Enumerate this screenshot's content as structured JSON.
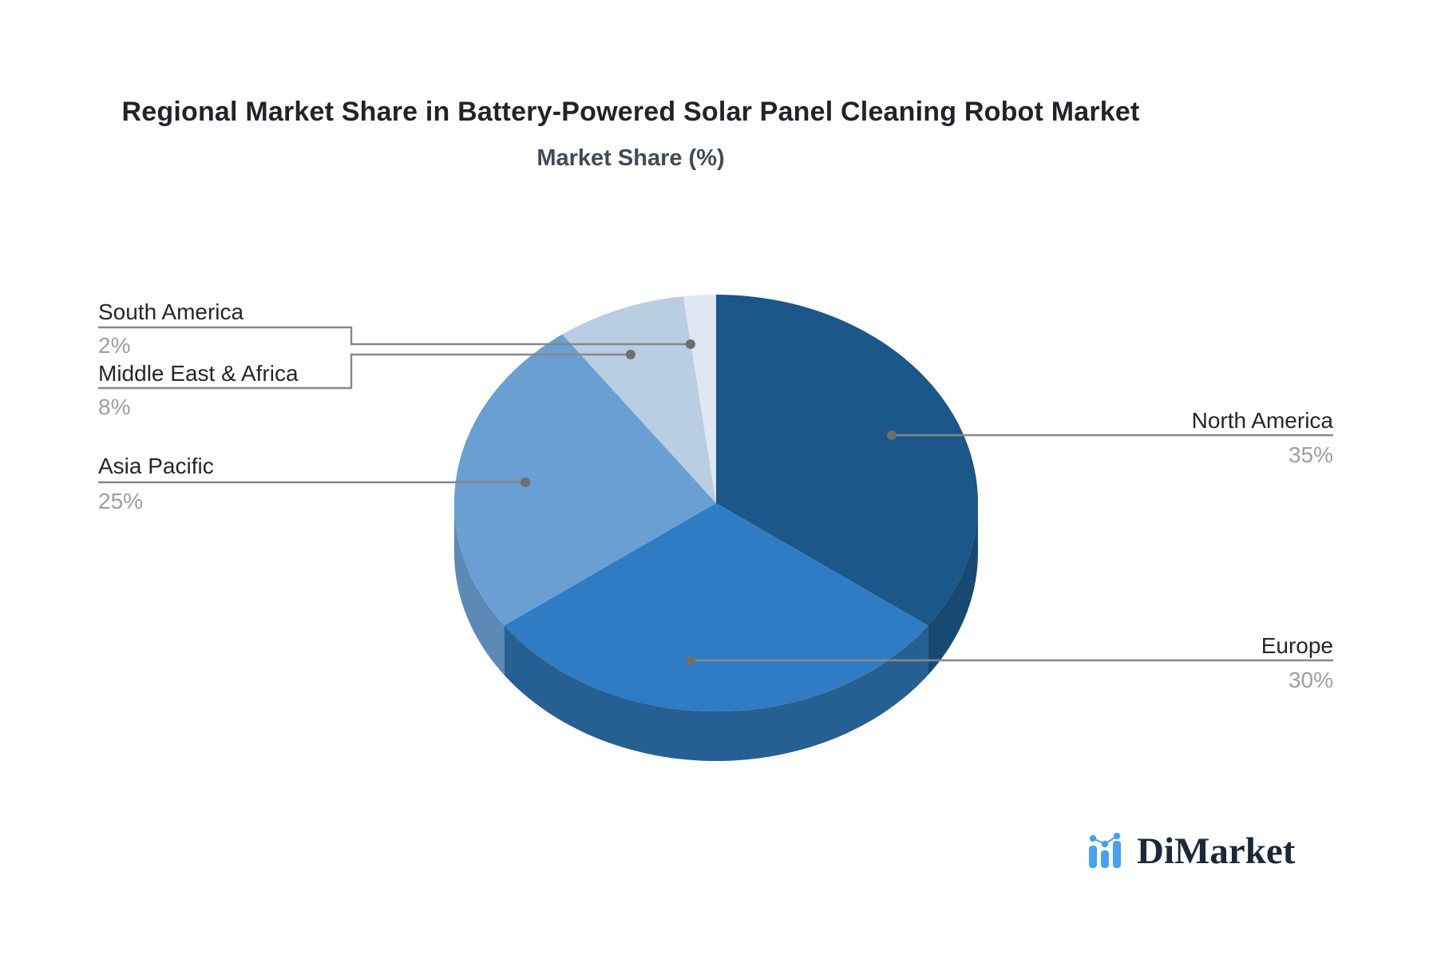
{
  "title": "Regional Market Share in Battery-Powered Solar Panel Cleaning Robot Market",
  "subtitle": "Market Share (%)",
  "brand": {
    "name": "DiMarket"
  },
  "chart_data": {
    "type": "pie",
    "title": "Regional Market Share in Battery-Powered Solar Panel Cleaning Robot Market",
    "subtitle": "Market Share (%)",
    "unit": "%",
    "effect": "3d",
    "start_angle_deg": 0,
    "direction": "clockwise",
    "legend": "none",
    "categories": [
      "North America",
      "Europe",
      "Asia Pacific",
      "Middle East & Africa",
      "South America"
    ],
    "values": [
      35,
      30,
      25,
      8,
      2
    ],
    "value_labels": [
      "35%",
      "30%",
      "25%",
      "8%",
      "2%"
    ],
    "colors": {
      "top": [
        "#1B5788",
        "#2F7CC4",
        "#6A9FD3",
        "#B9CDE3",
        "#DEE7F2"
      ],
      "side": [
        "#174A72",
        "#266093",
        "#5C8AB6",
        "#9FB7D2",
        "#C9D6E6"
      ]
    },
    "label_text_color": "#262626",
    "value_text_color": "#9e9e9e",
    "leader_line_color": "#878787",
    "leader_dot_color": "#6e6e6e",
    "brand_icon_color": "#47A1F5",
    "brand_text_color": "#1b2838"
  }
}
